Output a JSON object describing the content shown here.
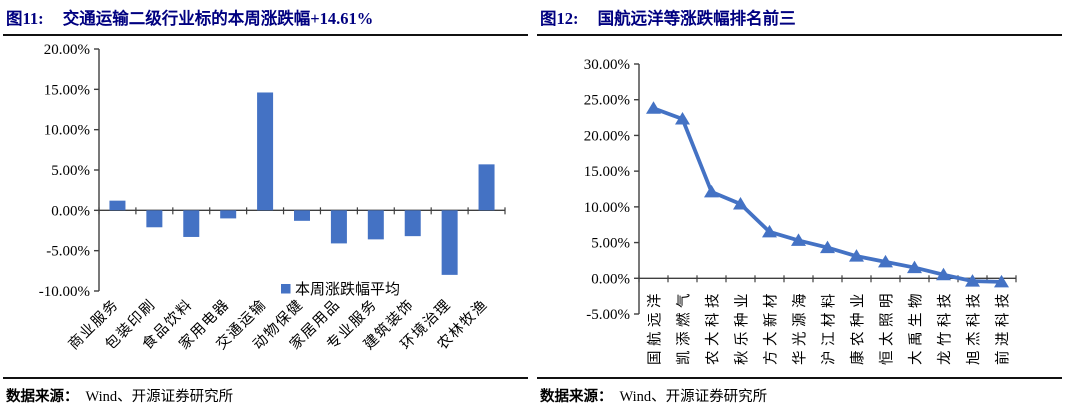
{
  "panels": [
    {
      "title_prefix": "图11:",
      "title": "交通运输二级行业标的本周涨跌幅+14.61%",
      "source_label": "数据来源：",
      "source_text": "Wind、开源证券研究所"
    },
    {
      "title_prefix": "图12:",
      "title": "国航远洋等涨跌幅排名前三",
      "source_label": "数据来源：",
      "source_text": "Wind、开源证券研究所"
    }
  ],
  "chart_data": [
    {
      "type": "bar",
      "title": "交通运输二级行业标的本周涨跌幅+14.61%",
      "categories": [
        "商业服务",
        "包装印刷",
        "食品饮料",
        "家用电器",
        "交通运输",
        "动物保健",
        "家居用品",
        "专业服务",
        "建筑装饰",
        "环境治理",
        "农林牧渔"
      ],
      "values": [
        1.2,
        -2.1,
        -3.3,
        -1.0,
        14.61,
        -1.3,
        -4.1,
        -3.6,
        -3.2,
        -8.0,
        5.7
      ],
      "unit": "%",
      "legend": "本周涨跌幅平均",
      "legend_position": "inside-bottom-right",
      "ylim": [
        -10,
        20
      ],
      "ytick_labels": [
        "20.00%",
        "15.00%",
        "10.00%",
        "5.00%",
        "0.00%",
        "-5.00%",
        "-10.00%"
      ],
      "xlabel_rotation": -45,
      "grid": false,
      "bar_color": "#4472C4"
    },
    {
      "type": "line",
      "title": "国航远洋等涨跌幅排名前三",
      "categories": [
        "国航远洋",
        "凯添燃气",
        "农大科技",
        "秋乐种业",
        "方大新材",
        "华光源海",
        "沪江材料",
        "康农种业",
        "恒太照明",
        "大禹生物",
        "龙竹科技",
        "旭杰科技",
        "前进科技"
      ],
      "values": [
        23.8,
        22.3,
        12.1,
        10.4,
        6.5,
        5.3,
        4.3,
        3.1,
        2.3,
        1.5,
        0.5,
        -0.4,
        -0.5
      ],
      "unit": "%",
      "marker": "triangle",
      "ylim": [
        -5,
        30
      ],
      "ytick_labels": [
        "30.00%",
        "25.00%",
        "20.00%",
        "15.00%",
        "10.00%",
        "5.00%",
        "0.00%",
        "-5.00%"
      ],
      "xlabel_rotation": -90,
      "grid": false,
      "line_color": "#4472C4"
    }
  ],
  "colors": {
    "title": "#000080",
    "series": "#4472C4",
    "axis": "#3f3f3f",
    "text": "#000000",
    "rule": "#111111"
  }
}
